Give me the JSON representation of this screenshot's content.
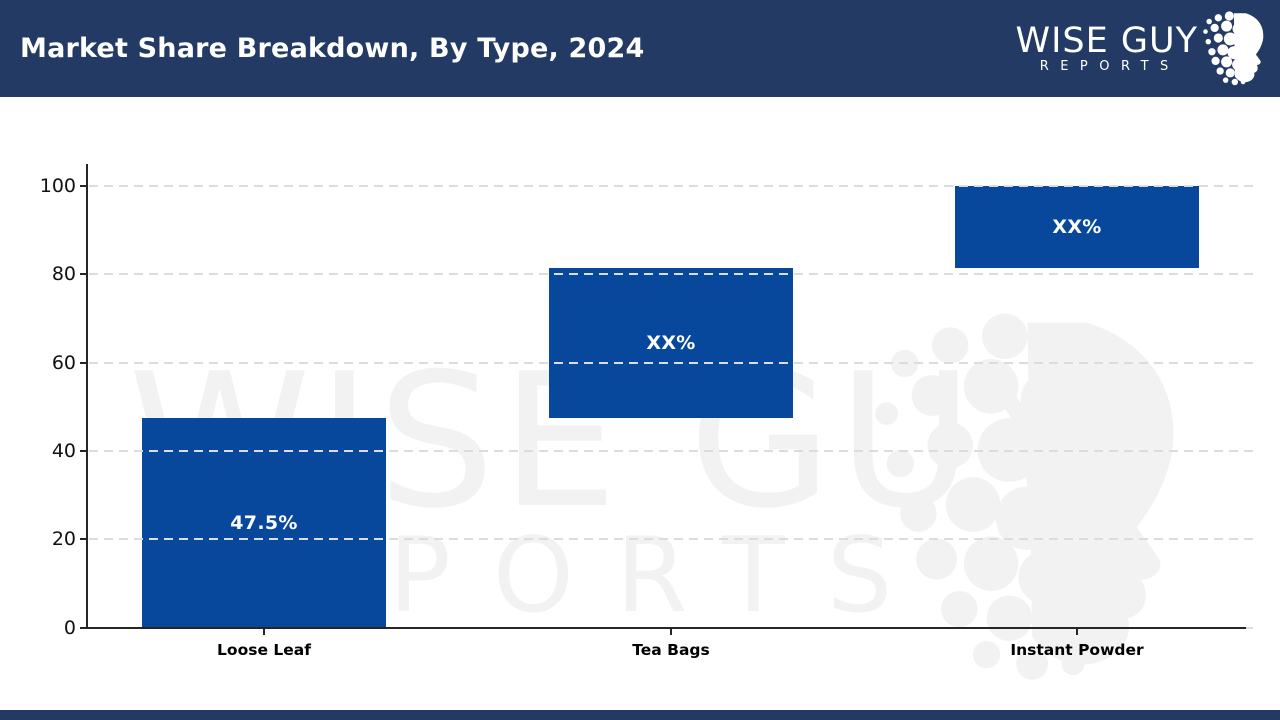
{
  "header": {
    "title": "Market Share Breakdown, By Type, 2024",
    "bg_color": "#233a64",
    "logo": {
      "line1": "WISE GUY",
      "line2": "REPORTS"
    }
  },
  "watermark": {
    "line1": "WISE GUY",
    "line2": "REPORTS"
  },
  "chart_data": {
    "type": "bar",
    "subtype": "waterfall-breakdown",
    "title": "Market Share Breakdown, By Type, 2024",
    "xlabel": "",
    "ylabel": "",
    "categories": [
      "Loose Leaf",
      "Tea Bags",
      "Instant Powder"
    ],
    "segments": [
      {
        "category": "Loose Leaf",
        "start": 0,
        "end": 47.5,
        "size": 47.5,
        "label": "47.5%"
      },
      {
        "category": "Tea Bags",
        "start": 47.5,
        "end": 81.4,
        "size": 33.9,
        "label": "XX%"
      },
      {
        "category": "Instant Powder",
        "start": 81.4,
        "end": 100,
        "size": 18.6,
        "label": "XX%"
      }
    ],
    "yticks": [
      0,
      20,
      40,
      60,
      80,
      100
    ],
    "ylim": [
      0,
      105
    ],
    "grid": "horizontal-dashed",
    "legend": "none",
    "bar_color": "#07489c",
    "grid_color": "#dcdcdc",
    "axis_color": "#262626"
  }
}
